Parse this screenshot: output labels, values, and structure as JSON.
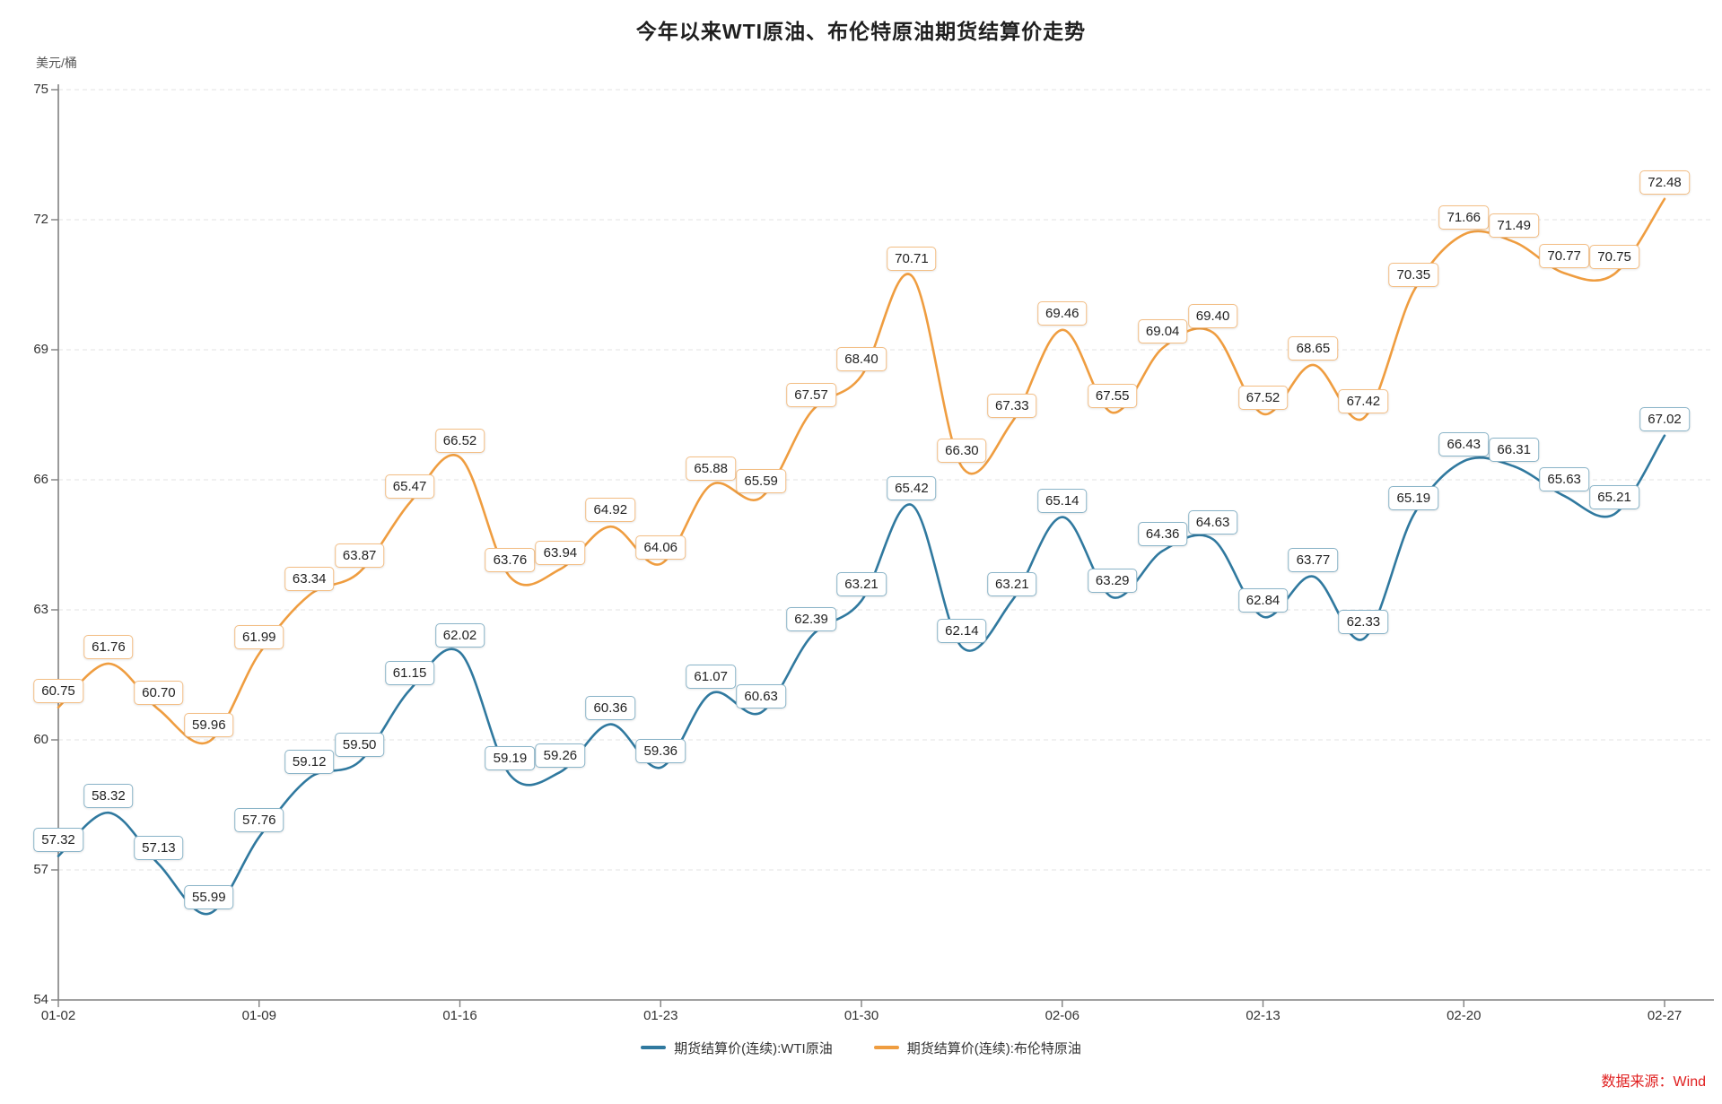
{
  "title": "今年以来WTI原油、布伦特原油期货结算价走势",
  "unit_label": "美元/桶",
  "source": "数据来源：Wind",
  "colors": {
    "wti_line": "#30799F",
    "wti_label_border": "#8AB4C8",
    "brent_line": "#EF9D40",
    "brent_label_border": "#F3BE85",
    "grid": "#E3E3E3",
    "axis": "#808080",
    "tick_text": "#333333",
    "source_red": "#E02020"
  },
  "legend": {
    "wti_label": "期货结算价(连续):WTI原油",
    "brent_label": "期货结算价(连续):布伦特原油"
  },
  "chart_data": {
    "type": "line",
    "title": "今年以来WTI原油、布伦特原油期货结算价走势",
    "ylabel": "美元/桶",
    "ylim": [
      54,
      75
    ],
    "y_ticks": [
      75,
      72,
      69,
      66,
      63,
      60,
      57,
      54
    ],
    "x_tick_labels": [
      "01-02",
      "01-09",
      "01-16",
      "01-23",
      "01-30",
      "02-06",
      "02-13",
      "02-20",
      "02-27"
    ],
    "x_tick_every": 4,
    "grid": true,
    "legend_position": "bottom",
    "series": [
      {
        "name": "期货结算价(连续):WTI原油",
        "key": "wti",
        "color": "#30799F",
        "label_border": "#8AB4C8",
        "values": [
          57.32,
          58.32,
          57.13,
          55.99,
          57.76,
          59.12,
          59.5,
          61.15,
          62.02,
          59.19,
          59.26,
          60.36,
          59.36,
          61.07,
          60.63,
          62.39,
          63.21,
          65.42,
          62.14,
          63.21,
          65.14,
          63.29,
          64.36,
          64.63,
          62.84,
          63.77,
          62.33,
          65.19,
          66.43,
          66.31,
          65.63,
          65.21,
          67.02
        ]
      },
      {
        "name": "期货结算价(连续):布伦特原油",
        "key": "brent",
        "color": "#EF9D40",
        "label_border": "#F3BE85",
        "values": [
          60.75,
          61.76,
          60.7,
          59.96,
          61.99,
          63.34,
          63.87,
          65.47,
          66.52,
          63.76,
          63.94,
          64.92,
          64.06,
          65.88,
          65.59,
          67.57,
          68.4,
          70.71,
          66.3,
          67.33,
          69.46,
          67.55,
          69.04,
          69.4,
          67.52,
          68.65,
          67.42,
          70.35,
          71.66,
          71.49,
          70.77,
          70.75,
          72.48
        ]
      }
    ]
  }
}
